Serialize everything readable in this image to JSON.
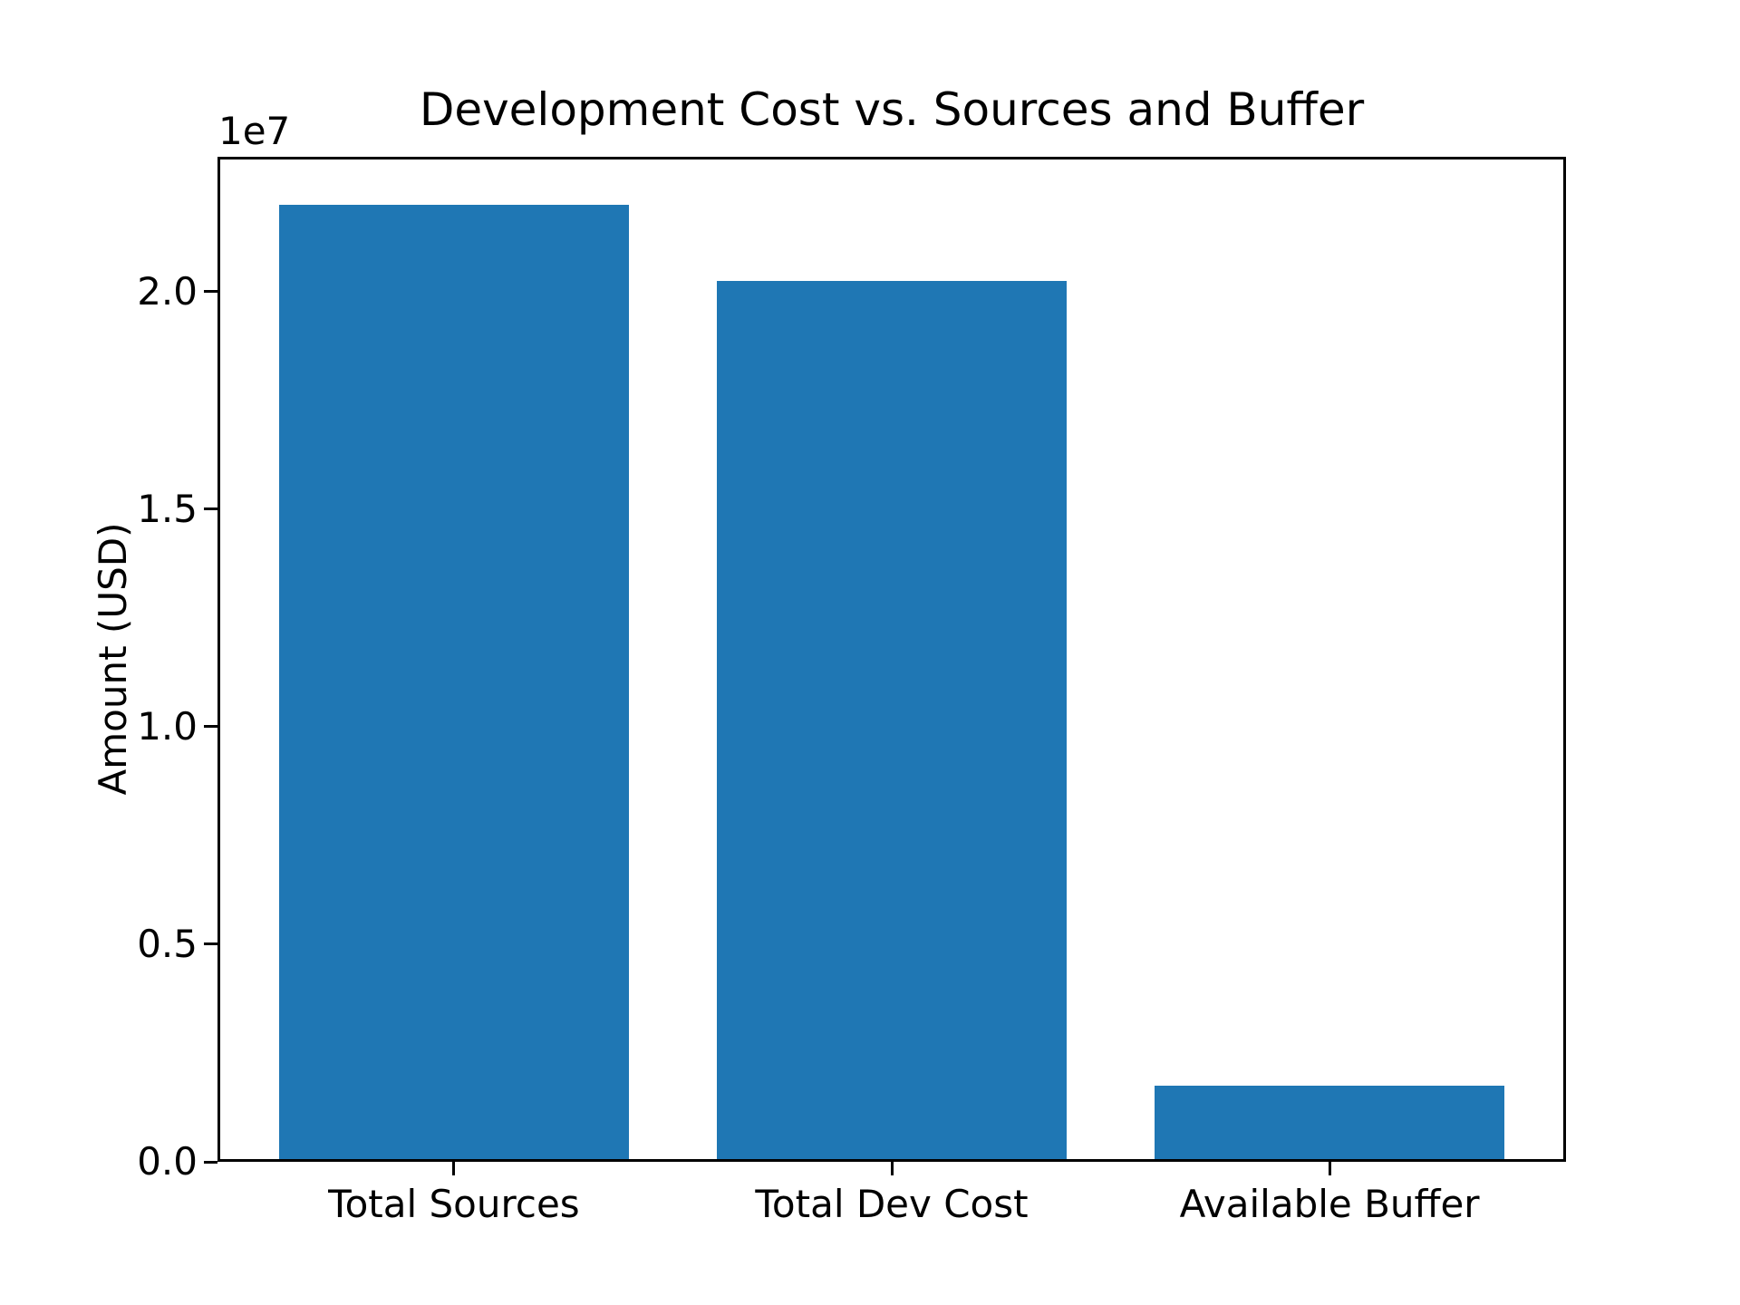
{
  "chart_data": {
    "type": "bar",
    "title": "Development Cost vs. Sources and Buffer",
    "xlabel": "",
    "ylabel": "Amount (USD)",
    "y_offset_label": "1e7",
    "categories": [
      "Total Sources",
      "Total Dev Cost",
      "Available Buffer"
    ],
    "values": [
      22000000,
      20250000,
      1750000
    ],
    "ylim": [
      0,
      23100000
    ],
    "yticks": [
      {
        "value": 0,
        "label": "0.0"
      },
      {
        "value": 5000000,
        "label": "0.5"
      },
      {
        "value": 10000000,
        "label": "1.0"
      },
      {
        "value": 15000000,
        "label": "1.5"
      },
      {
        "value": 20000000,
        "label": "2.0"
      }
    ],
    "bar_color": "#1f77b4",
    "axis_color": "#000000",
    "text_color": "#000000",
    "background_color": "#ffffff",
    "grid": false,
    "legend": null
  }
}
